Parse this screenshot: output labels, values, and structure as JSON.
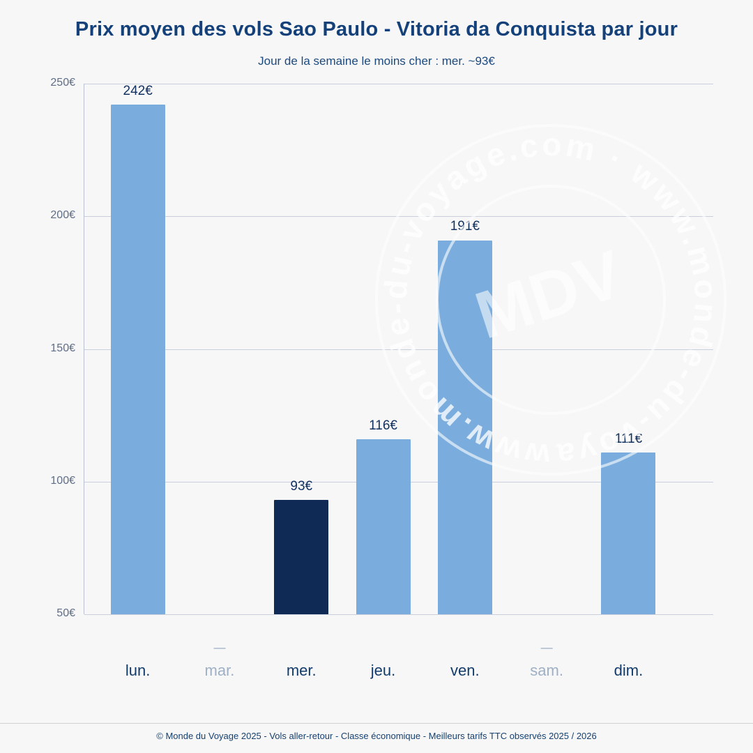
{
  "title": "Prix moyen des vols Sao Paulo - Vitoria da Conquista par jour",
  "subtitle": "Jour de la semaine le moins cher : mer. ~93€",
  "footer": "© Monde du Voyage 2025 - Vols aller-retour - Classe économique - Meilleurs tarifs TTC observés 2025 / 2026",
  "watermark": {
    "ring_text": "www.monde-du-voyage.com · www.monde-du-voyage.com ·",
    "center_text": "MDV"
  },
  "chart_data": {
    "type": "bar",
    "categories": [
      "lun.",
      "mar.",
      "mer.",
      "jeu.",
      "ven.",
      "sam.",
      "dim."
    ],
    "values": [
      242,
      null,
      93,
      116,
      191,
      null,
      111
    ],
    "value_labels": [
      "242€",
      null,
      "93€",
      "116€",
      "191€",
      null,
      "111€"
    ],
    "missing_marker": "—",
    "title": "Prix moyen des vols Sao Paulo - Vitoria da Conquista par jour",
    "xlabel": "",
    "ylabel": "",
    "ylim": [
      50,
      250
    ],
    "yticks": [
      50,
      100,
      150,
      200,
      250
    ],
    "ytick_labels": [
      "50€",
      "100€",
      "150€",
      "200€",
      "250€"
    ],
    "grid": true,
    "legend": false,
    "highlight_index": 2,
    "colors": {
      "bar": "#7aaddd",
      "bar_highlight": "#0e2a55",
      "grid": "#c9cfdd",
      "axis": "#b9c1d0",
      "tick_text": "#5f6e86",
      "value_text": "#12315e",
      "day_active": "#123c6b",
      "day_inactive": "#9fb0c6",
      "title_text": "#14417a"
    }
  }
}
